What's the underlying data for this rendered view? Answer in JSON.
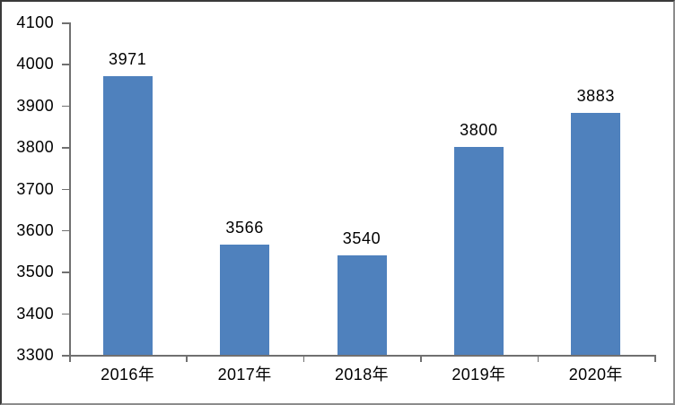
{
  "chart_data": {
    "type": "bar",
    "title": "",
    "categories": [
      "2016年",
      "2017年",
      "2018年",
      "2019年",
      "2020年"
    ],
    "values": [
      3971,
      3566,
      3540,
      3800,
      3883
    ],
    "data_labels": [
      "3971",
      "3566",
      "3540",
      "3800",
      "3883"
    ],
    "xlabel": "",
    "ylabel": "",
    "ylim": [
      3300,
      4100
    ],
    "y_ticks": [
      4100,
      4000,
      3900,
      3800,
      3700,
      3600,
      3500,
      3400,
      3300
    ],
    "grid": false,
    "legend": "none",
    "bar_color": "#4F81BD",
    "axis_color": "#707070",
    "text_color": "#000000"
  }
}
